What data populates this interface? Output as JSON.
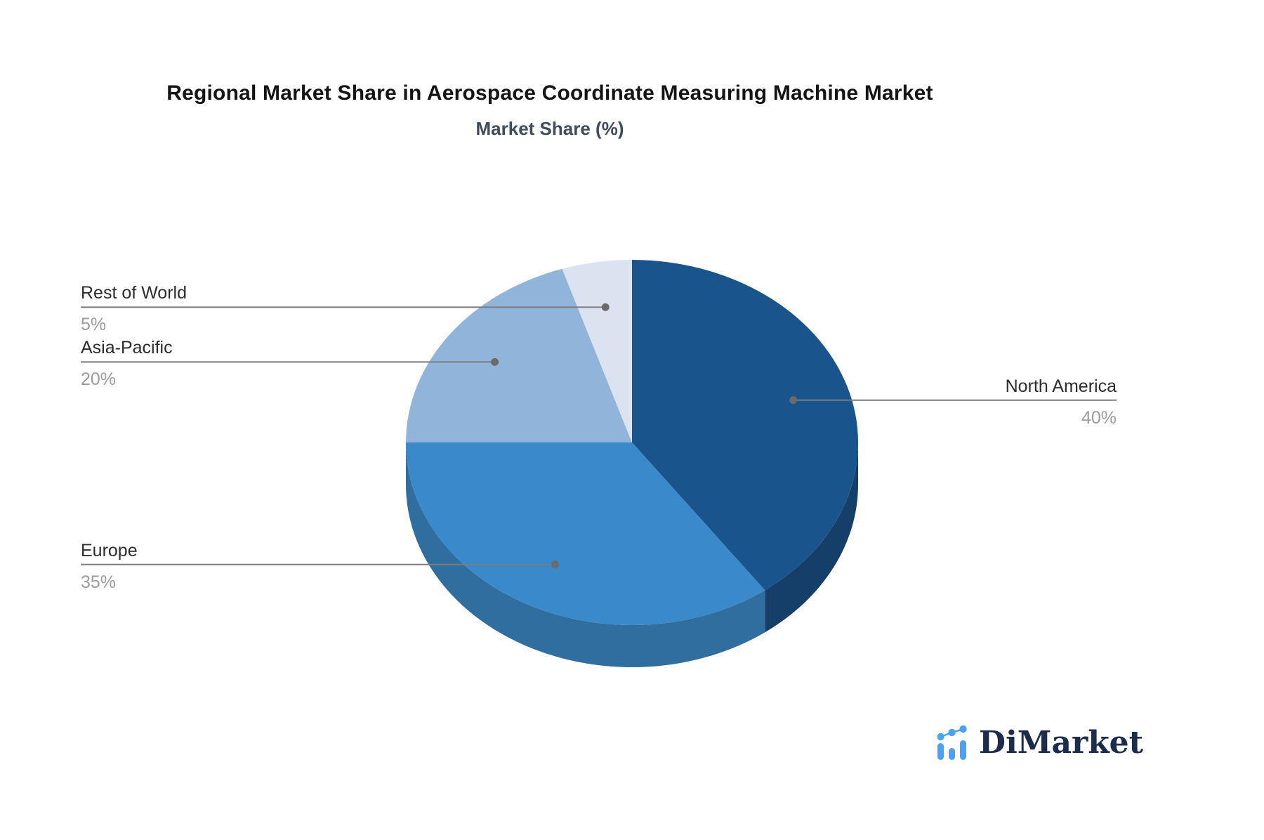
{
  "header": {
    "title": "Regional Market Share in Aerospace Coordinate Measuring Machine Market",
    "subtitle": "Market Share (%)"
  },
  "chart_data": {
    "type": "pie",
    "style": "3d",
    "title": "Regional Market Share in Aerospace Coordinate Measuring Machine Market",
    "subtitle": "Market Share (%)",
    "unit": "%",
    "start_angle_deg": 0,
    "direction": "clockwise",
    "legend_position": "none",
    "label_style": "callout-leader-lines",
    "labels": [
      "North America",
      "Europe",
      "Asia-Pacific",
      "Rest of World"
    ],
    "values": [
      40,
      35,
      20,
      5
    ],
    "percent_labels": [
      "40%",
      "35%",
      "20%",
      "5%"
    ],
    "slice_colors": [
      "#19558C",
      "#3A8ACB",
      "#91B5DA",
      "#DCE3F0"
    ],
    "side_colors": [
      "#153F68",
      "#316EA0",
      "#7BA0C8",
      "#C4CFE2"
    ],
    "label_align": [
      "right",
      "left",
      "left",
      "left"
    ],
    "leader_line_color": "#7C7C7C",
    "leader_dot_color": "#6B6B6B",
    "label_text_color": "#2D2D2D",
    "percent_text_color": "#9C9C9C"
  },
  "logo": {
    "text": "DiMarket",
    "icon": "bar-chart-logo-icon",
    "icon_color": "#4BA2F2",
    "text_color": "#1D2C4C"
  }
}
